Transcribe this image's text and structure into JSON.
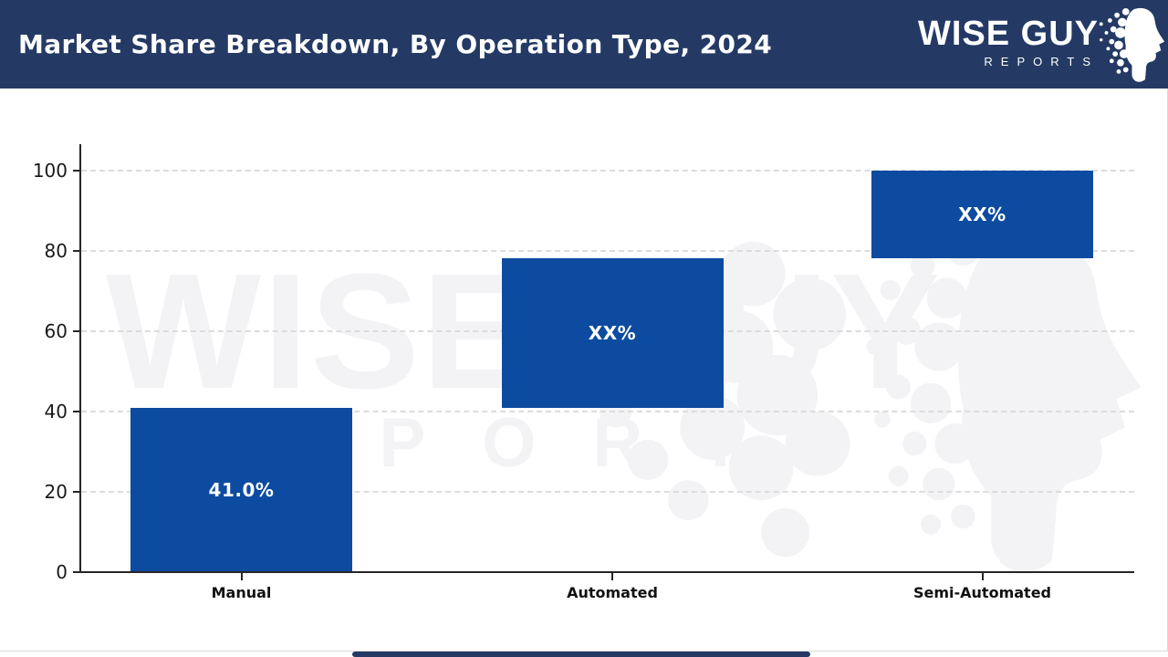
{
  "header": {
    "title": "Market Share Breakdown, By Operation Type, 2024",
    "logo": {
      "line1": "WISE GUY",
      "line2": "REPORTS"
    }
  },
  "watermark": {
    "big_text": "WISE GUY",
    "small_text": "REPORTS"
  },
  "colors": {
    "header_background": "#243a64",
    "bar": "#0c4ba0",
    "bar_label": "#ffffff",
    "gridline": "#dcdcdc",
    "axis": "#262626",
    "tick_label": "#1a1a1a",
    "watermark": "#f3f3f6",
    "card_border": "#d9d9d9"
  },
  "chart_data": {
    "type": "bar",
    "subtype": "cumulative-stacked-breakdown",
    "title": "Market Share Breakdown, By Operation Type, 2024",
    "categories": [
      "Manual",
      "Automated",
      "Semi-Automated"
    ],
    "segments": [
      {
        "category": "Manual",
        "start": 0,
        "end": 41.0,
        "value": 41.0,
        "value_label": "41.0%"
      },
      {
        "category": "Automated",
        "start": 41.0,
        "end": 78.2,
        "value": 37.2,
        "value_label": "XX%"
      },
      {
        "category": "Semi-Automated",
        "start": 78.2,
        "end": 100,
        "value": 21.8,
        "value_label": "XX%"
      }
    ],
    "xlabel": "",
    "ylabel": "",
    "ylim": [
      0,
      107
    ],
    "yticks": [
      0,
      20,
      40,
      60,
      80,
      100
    ],
    "grid": "horizontal-dashed",
    "legend": "none"
  }
}
